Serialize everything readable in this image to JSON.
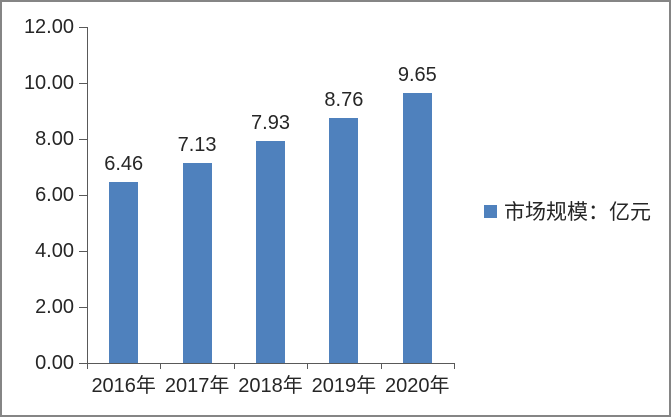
{
  "chart_data": {
    "type": "bar",
    "title": "",
    "categories": [
      "2016年",
      "2017年",
      "2018年",
      "2019年",
      "2020年"
    ],
    "values": [
      6.46,
      7.13,
      7.93,
      8.76,
      9.65
    ],
    "value_labels": [
      "6.46",
      "7.13",
      "7.93",
      "8.76",
      "9.65"
    ],
    "series": [
      {
        "name": "市场规模：亿元",
        "values": [
          6.46,
          7.13,
          7.93,
          8.76,
          9.65
        ]
      }
    ],
    "xlabel": "",
    "ylabel": "",
    "ylim": [
      0,
      12
    ],
    "ytick_step": 2,
    "ytick_labels": [
      "12.00",
      "10.00",
      "8.00",
      "6.00",
      "4.00",
      "2.00",
      "0.00"
    ],
    "grid": false,
    "legend_position": "right-middle",
    "bar_color": "#4F81BD",
    "axis_color": "#595959",
    "text_color": "#262626"
  },
  "legend": {
    "label": "市场规模：亿元"
  }
}
